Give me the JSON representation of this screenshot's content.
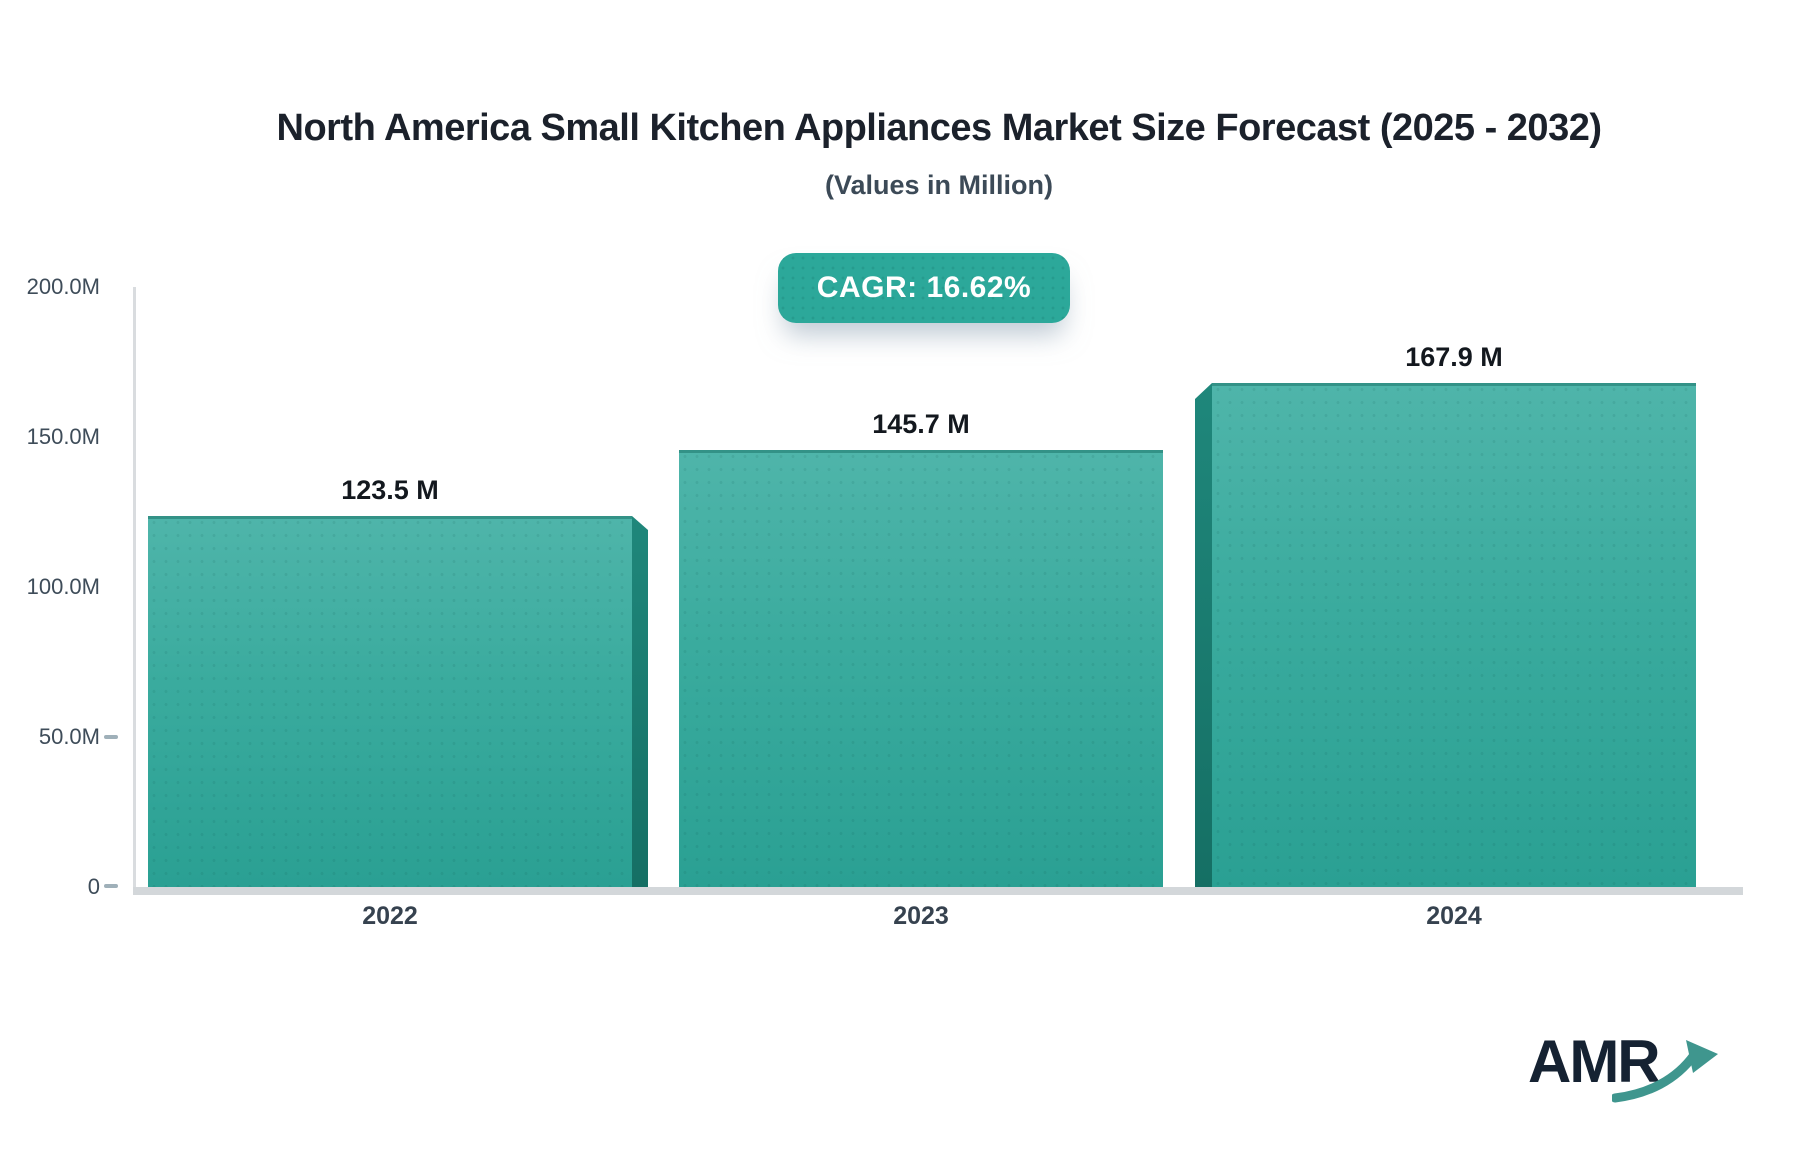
{
  "header": {
    "title": "North America Small Kitchen Appliances Market Size Forecast (2025 - 2032)",
    "subtitle": "(Values in Million)"
  },
  "badge": {
    "label": "CAGR: 16.62%",
    "cagr_percent": 16.62
  },
  "chart_data": {
    "type": "bar",
    "title": "North America Small Kitchen Appliances Market Size Forecast (2025 - 2032)",
    "subtitle": "(Values in Million)",
    "categories": [
      "2022",
      "2023",
      "2024"
    ],
    "values": [
      123.5,
      145.7,
      167.9
    ],
    "value_labels": [
      "123.5 M",
      "145.7 M",
      "167.9 M"
    ],
    "ytick_labels": [
      "200.0M",
      "150.0M",
      "100.0M",
      "50.0M",
      "0"
    ],
    "ytick_values": [
      200,
      150,
      100,
      50,
      0
    ],
    "ylim": [
      0,
      200
    ],
    "xlabel": "",
    "ylabel": "",
    "grid": false,
    "legend": false,
    "bar_color_top": "#4fb5aa",
    "bar_color_bottom": "#2aa093",
    "bar_side_color": "#17756a"
  },
  "logo": {
    "text": "AMR",
    "icon": "growth-arrow"
  },
  "colors": {
    "accent_teal": "#2ca89a",
    "axis_gray": "#d6d9dc",
    "tick_label_slate": "#3e4c59",
    "title_dark": "#1b212b",
    "logo_navy": "#152232",
    "badge_text": "#ffffff"
  }
}
